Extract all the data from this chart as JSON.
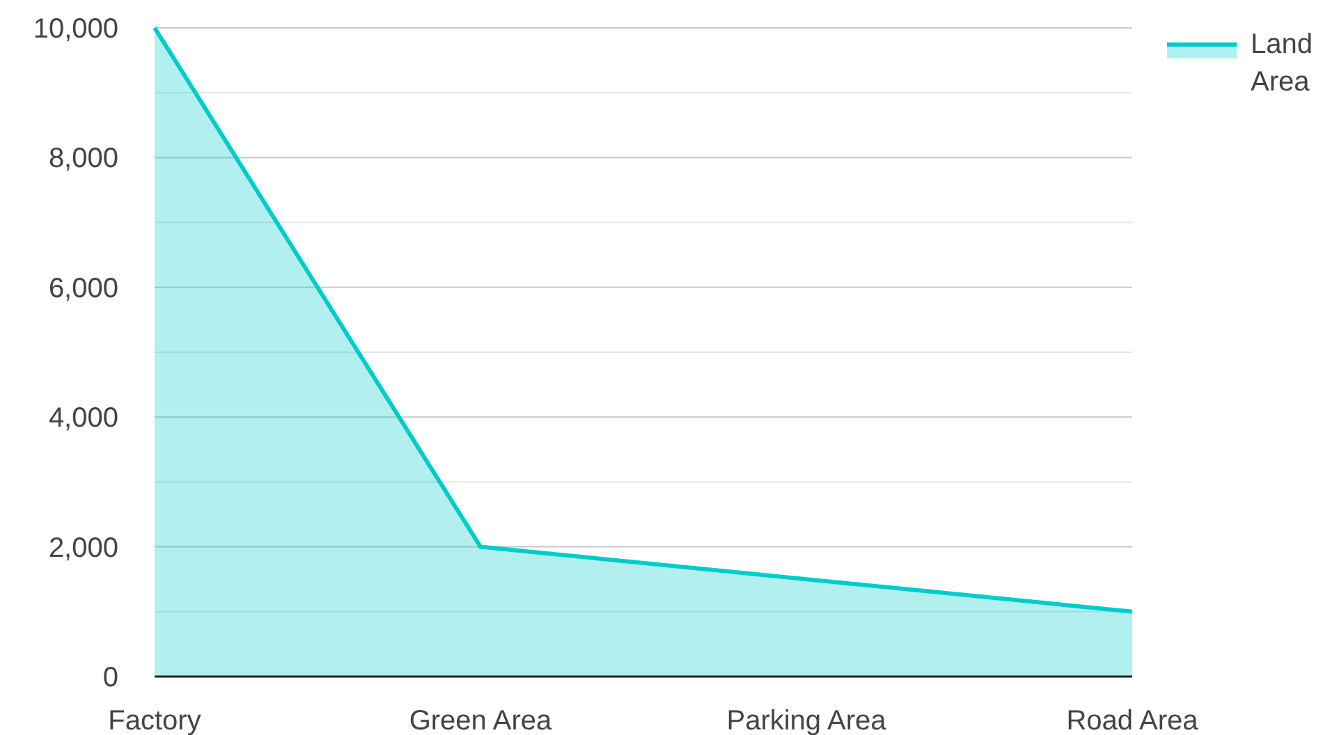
{
  "chart_data": {
    "type": "area",
    "categories": [
      "Factory",
      "Green Area",
      "Parking Area",
      "Road Area"
    ],
    "series": [
      {
        "name": "Land Area",
        "color": "#00cccc",
        "values": [
          10000,
          2000,
          1500,
          1000
        ]
      }
    ],
    "ylim": [
      0,
      10000
    ],
    "yticks": [
      0,
      {
        "value": 1000,
        "label": null
      },
      {
        "value": 2000,
        "label": "2,000"
      },
      {
        "value": 3000,
        "label": null
      },
      {
        "value": 4000,
        "label": "4,000"
      },
      {
        "value": 5000,
        "label": null
      },
      {
        "value": 6000,
        "label": "6,000"
      },
      {
        "value": 7000,
        "label": null
      },
      {
        "value": 8000,
        "label": "8,000"
      },
      {
        "value": 9000,
        "label": null
      },
      {
        "value": 10000,
        "label": "10,000"
      }
    ],
    "grid": "y",
    "legend": "top right"
  }
}
